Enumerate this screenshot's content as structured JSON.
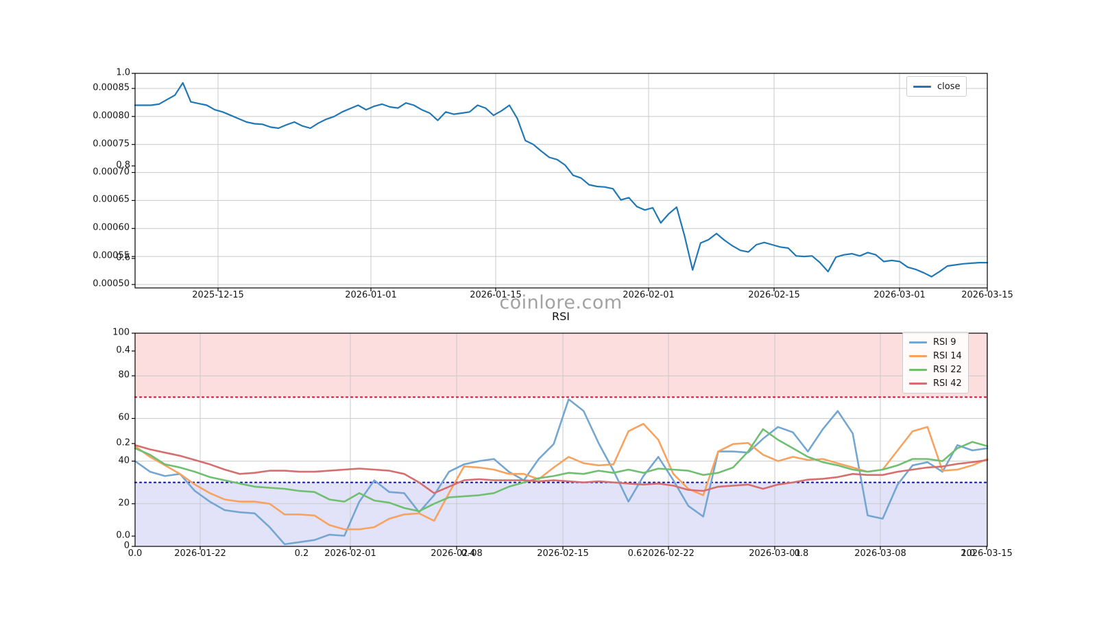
{
  "watermark": "coinlore.com",
  "colors": {
    "close_line": "#1f77b4",
    "rsi9_line": "#74a6d2",
    "rsi14_line": "#f7a35f",
    "rsi22_line": "#6fbf70",
    "rsi42_line": "#d66e6e",
    "overbought_band": "#fcdede",
    "oversold_band": "#e2e2f9",
    "overbought_dotted_line": "#e01030",
    "oversold_dotted_line": "#1414c8",
    "grid": "#c9c9c9",
    "axis": "#000000",
    "watermark_color": "#a2a2a2"
  },
  "hidden_axis": {
    "y_tick_labels": [
      "1.0",
      "0.8",
      "0.6",
      "0.4",
      "0.2",
      "0.0"
    ],
    "x_tick_labels": [
      "0.0",
      "0.2",
      "0.4",
      "0.6",
      "0.8",
      "1.0"
    ]
  },
  "chart_data": [
    {
      "type": "line",
      "title": "",
      "legend_position": "upper right",
      "grid": true,
      "x_start": "2025-12-06",
      "x_end": "2026-03-15",
      "xtick_labels": [
        "2025-12-15",
        "2026-01-01",
        "2026-01-15",
        "2026-02-01",
        "2026-02-15",
        "2026-03-01",
        "2026-03-15"
      ],
      "ytick_labels": [
        "0.00050",
        "0.00055",
        "0.00060",
        "0.00065",
        "0.00070",
        "0.00075",
        "0.00080",
        "0.00085"
      ],
      "ytick_values": [
        0.0005,
        0.00055,
        0.0006,
        0.00065,
        0.0007,
        0.00075,
        0.0008,
        0.00085
      ],
      "ylim": [
        0.000494,
        0.000867
      ],
      "series": [
        {
          "name": "close",
          "color": "#1f77b4",
          "values": [
            0.00082,
            0.00082,
            0.00082,
            0.000822,
            0.00083,
            0.000838,
            0.00086,
            0.000826,
            0.000823,
            0.00082,
            0.000812,
            0.000808,
            0.000802,
            0.000796,
            0.00079,
            0.000787,
            0.000786,
            0.000781,
            0.000779,
            0.000785,
            0.00079,
            0.000783,
            0.000779,
            0.000788,
            0.000795,
            0.0008,
            0.000808,
            0.000814,
            0.00082,
            0.000812,
            0.000818,
            0.000822,
            0.000817,
            0.000815,
            0.000824,
            0.00082,
            0.000812,
            0.000806,
            0.000793,
            0.000808,
            0.000804,
            0.000806,
            0.000808,
            0.00082,
            0.000815,
            0.000802,
            0.00081,
            0.00082,
            0.000796,
            0.000757,
            0.00075,
            0.000738,
            0.000727,
            0.000723,
            0.000713,
            0.000695,
            0.00069,
            0.000678,
            0.000675,
            0.000674,
            0.000671,
            0.000651,
            0.000655,
            0.000639,
            0.000633,
            0.000637,
            0.00061,
            0.000626,
            0.000638,
            0.000586,
            0.000526,
            0.000574,
            0.00058,
            0.000591,
            0.000579,
            0.000569,
            0.000561,
            0.000558,
            0.000571,
            0.000575,
            0.000571,
            0.000567,
            0.000565,
            0.000551,
            0.00055,
            0.000551,
            0.000539,
            0.000523,
            0.000549,
            0.000553,
            0.000555,
            0.000551,
            0.000557,
            0.000553,
            0.000541,
            0.000543,
            0.000541,
            0.000531,
            0.000527,
            0.000521,
            0.000514,
            0.000523,
            0.000533,
            0.000535,
            0.000537,
            0.000538,
            0.000539,
            0.000539
          ]
        }
      ]
    },
    {
      "type": "line",
      "title": "RSI",
      "legend_position": "upper right",
      "grid": true,
      "x_start": "2026-01-17",
      "x_end": "2026-03-15",
      "xtick_labels": [
        "2026-01-22",
        "2026-02-01",
        "2026-02-08",
        "2026-02-15",
        "2026-02-22",
        "2026-03-01",
        "2026-03-08",
        "2026-03-15"
      ],
      "ytick_labels": [
        "0",
        "20",
        "40",
        "60",
        "80",
        "100"
      ],
      "ytick_values": [
        0,
        20,
        40,
        60,
        80,
        100
      ],
      "ylim": [
        0,
        100
      ],
      "overbought_level": 70,
      "oversold_level": 30,
      "series": [
        {
          "name": "RSI 9",
          "color": "#74a6d2",
          "values": [
            40,
            35,
            33,
            34,
            26,
            21,
            17,
            16,
            15.5,
            9,
            1,
            2,
            3,
            5.5,
            5,
            21,
            31,
            25.5,
            25,
            16,
            24,
            35,
            38.5,
            40,
            41,
            35,
            31,
            41,
            48,
            69,
            63.5,
            48.5,
            35.5,
            21,
            33,
            42,
            31,
            19,
            14,
            44.5,
            44.5,
            44,
            50.5,
            56,
            53.5,
            44.5,
            55,
            63.5,
            53,
            14.5,
            13,
            29,
            38,
            39.5,
            35,
            47.5,
            45,
            46
          ]
        },
        {
          "name": "RSI 14",
          "color": "#f7a35f",
          "values": [
            47,
            42,
            38,
            34,
            29,
            25,
            22,
            21,
            21,
            20,
            15,
            15,
            14.5,
            10,
            8,
            8,
            9,
            13,
            15,
            15.5,
            12,
            25,
            37.5,
            37,
            36,
            34,
            34,
            31.5,
            37,
            42,
            39,
            38,
            38.5,
            54,
            57.5,
            50,
            34,
            27,
            24,
            44.5,
            48,
            48.5,
            43,
            40,
            42,
            40.5,
            41,
            39,
            37,
            35,
            36,
            45,
            54,
            56,
            35.5,
            36,
            38,
            41
          ]
        },
        {
          "name": "RSI 22",
          "color": "#6fbf70",
          "values": [
            46,
            43,
            38.5,
            37,
            35,
            32.5,
            31,
            29.5,
            28,
            27.5,
            27,
            26,
            25.5,
            22,
            21,
            25,
            21.5,
            20.5,
            18,
            16.5,
            20,
            23,
            23.5,
            24,
            25,
            28,
            30,
            32,
            33,
            34.5,
            34,
            35.5,
            34.5,
            36,
            34.5,
            36.5,
            36,
            35.5,
            33.5,
            34.5,
            37,
            44.5,
            55,
            50,
            46,
            42,
            39.5,
            38,
            36,
            35,
            36,
            38,
            41,
            41,
            40,
            46,
            49,
            47
          ]
        },
        {
          "name": "RSI 42",
          "color": "#d66e6e",
          "values": [
            47.5,
            45.5,
            44,
            42.5,
            40.5,
            38.5,
            36,
            34,
            34.5,
            35.5,
            35.5,
            35,
            35,
            35.5,
            36,
            36.5,
            36,
            35.5,
            34,
            30,
            25,
            28,
            31,
            31.5,
            31,
            31,
            31,
            30.5,
            31,
            30.5,
            30,
            30.5,
            30,
            29.5,
            29,
            29.5,
            28.5,
            26.5,
            26,
            28,
            28.5,
            29,
            27,
            29,
            30,
            31.3,
            31.7,
            32.5,
            34,
            33.5,
            33.5,
            35,
            36,
            37,
            37.5,
            38.7,
            39.5,
            40.5
          ]
        }
      ]
    }
  ]
}
